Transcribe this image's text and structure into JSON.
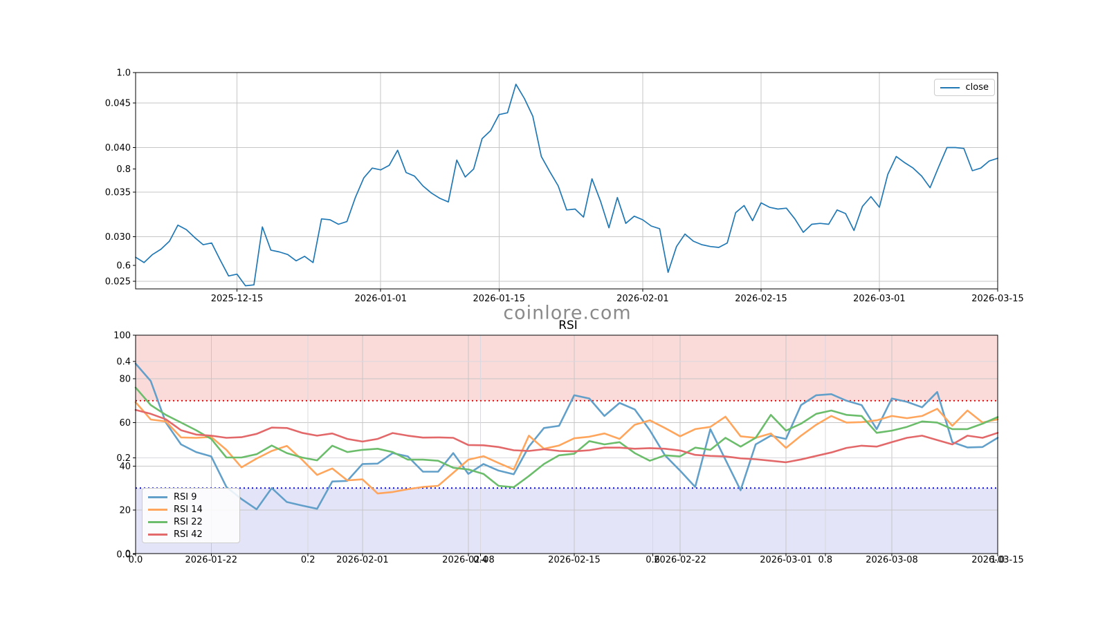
{
  "watermark": "coinlore.com",
  "colors": {
    "close": "#1f77b4",
    "rsi9": "#62a0ca",
    "rsi14": "#ffa55c",
    "rsi22": "#6bbd6b",
    "rsi42": "#e26869",
    "grid": "#c6c6c6",
    "grid_light": "#d8d8de",
    "overbought_band": "#fbdada",
    "oversold_band": "#e4e4f8",
    "overbought_line": "#e00000",
    "oversold_line": "#0000d0",
    "spine": "#000000",
    "watermark_color": "#8a8a8a"
  },
  "overlay_axis": {
    "y_ticks": [
      "0.0",
      "0.2",
      "0.4",
      "0.6",
      "0.8",
      "1.0"
    ],
    "x_ticks": [
      "0.0",
      "0.2",
      "0.4",
      "0.6",
      "0.8",
      "1.0"
    ]
  },
  "chart_data": [
    {
      "type": "line",
      "title": "",
      "xlabel": "",
      "ylabel": "",
      "x_start": "2025-12-03",
      "x_end": "2026-03-15",
      "frequency": "daily",
      "ylim": [
        0.02415,
        0.04841
      ],
      "grid": true,
      "legend_position": "upper right",
      "y_ticks": [
        {
          "label": "0.025",
          "v": 0.025
        },
        {
          "label": "0.030",
          "v": 0.03
        },
        {
          "label": "0.035",
          "v": 0.035
        },
        {
          "label": "0.040",
          "v": 0.04
        },
        {
          "label": "0.045",
          "v": 0.045
        }
      ],
      "x_ticks": [
        {
          "label": "2025-12-15",
          "f": 0.1176
        },
        {
          "label": "2026-01-01",
          "f": 0.2843
        },
        {
          "label": "2026-01-15",
          "f": 0.4216
        },
        {
          "label": "2026-02-01",
          "f": 0.5882
        },
        {
          "label": "2026-02-15",
          "f": 0.7255
        },
        {
          "label": "2026-03-01",
          "f": 0.8627
        },
        {
          "label": "2026-03-15",
          "f": 1.0
        }
      ],
      "series": [
        {
          "name": "close",
          "color_key": "close",
          "width": 1.7,
          "values": [
            0.0277,
            0.0271,
            0.028,
            0.0286,
            0.0295,
            0.0313,
            0.0308,
            0.0299,
            0.0291,
            0.0293,
            0.0274,
            0.0256,
            0.0258,
            0.0245,
            0.0246,
            0.0311,
            0.0285,
            0.0283,
            0.028,
            0.0273,
            0.0278,
            0.0271,
            0.032,
            0.0319,
            0.0314,
            0.0317,
            0.0344,
            0.0366,
            0.0377,
            0.0375,
            0.038,
            0.0397,
            0.0372,
            0.0368,
            0.0357,
            0.0349,
            0.0343,
            0.0339,
            0.0386,
            0.0367,
            0.0376,
            0.041,
            0.0419,
            0.0437,
            0.0439,
            0.0471,
            0.0455,
            0.0435,
            0.039,
            0.0373,
            0.0357,
            0.033,
            0.0331,
            0.0322,
            0.0365,
            0.034,
            0.031,
            0.0344,
            0.0315,
            0.0323,
            0.0319,
            0.0312,
            0.0309,
            0.026,
            0.0289,
            0.0303,
            0.0295,
            0.0291,
            0.0289,
            0.0288,
            0.0293,
            0.0327,
            0.0335,
            0.0318,
            0.0338,
            0.0333,
            0.0331,
            0.0332,
            0.032,
            0.0305,
            0.0314,
            0.0315,
            0.0314,
            0.033,
            0.0326,
            0.0307,
            0.0334,
            0.0345,
            0.0333,
            0.037,
            0.039,
            0.0383,
            0.0377,
            0.0368,
            0.0355,
            0.0378,
            0.04,
            0.04,
            0.0399,
            0.0374,
            0.0377,
            0.0385,
            0.0388
          ]
        }
      ]
    },
    {
      "type": "line",
      "title": "RSI",
      "xlabel": "",
      "ylabel": "",
      "x_start": "2026-01-17",
      "x_end": "2026-03-15",
      "frequency": "daily",
      "ylim": [
        0,
        100
      ],
      "grid": true,
      "legend_position": "lower left",
      "overbought_level": 70,
      "oversold_level": 30,
      "bands": [
        {
          "from": 70,
          "to": 100,
          "color_key": "overbought_band"
        },
        {
          "from": 0,
          "to": 30,
          "color_key": "oversold_band"
        }
      ],
      "y_ticks": [
        {
          "label": "0",
          "v": 0
        },
        {
          "label": "20",
          "v": 20
        },
        {
          "label": "40",
          "v": 40
        },
        {
          "label": "60",
          "v": 60
        },
        {
          "label": "80",
          "v": 80
        },
        {
          "label": "100",
          "v": 100
        }
      ],
      "x_ticks": [
        {
          "label": "2026-01-22",
          "f": 0.0877
        },
        {
          "label": "2026-02-01",
          "f": 0.2632
        },
        {
          "label": "2026-02-08",
          "f": 0.386
        },
        {
          "label": "2026-02-15",
          "f": 0.5088
        },
        {
          "label": "2026-02-22",
          "f": 0.6316
        },
        {
          "label": "2026-03-01",
          "f": 0.7544
        },
        {
          "label": "2026-03-08",
          "f": 0.8772
        },
        {
          "label": "2026-03-15",
          "f": 1.0
        }
      ],
      "series": [
        {
          "name": "RSI 9",
          "color_key": "rsi9",
          "width": 2.6,
          "values": [
            87,
            79,
            60,
            50,
            46.5,
            44.5,
            30.5,
            25,
            20.3,
            30,
            23.6,
            22,
            20.5,
            33,
            33.3,
            41,
            41.2,
            46,
            44.5,
            37.5,
            37.5,
            46,
            36.5,
            41,
            38,
            36.3,
            49,
            57.5,
            58.5,
            72.5,
            71,
            63,
            69,
            66,
            56.5,
            45,
            38,
            30.5,
            57,
            43,
            29,
            50,
            54,
            52.5,
            68,
            72.5,
            73,
            70,
            68,
            57,
            71,
            69.5,
            67,
            74,
            51,
            48.6,
            48.8,
            53
          ]
        },
        {
          "name": "RSI 14",
          "color_key": "rsi14",
          "width": 2.6,
          "values": [
            69.3,
            61.4,
            60.5,
            53.2,
            53,
            53.4,
            47.5,
            39.5,
            43.5,
            47,
            49.3,
            43,
            36,
            39,
            33.5,
            34,
            27.5,
            28.2,
            29.5,
            30.5,
            31,
            37,
            43,
            44.6,
            41.5,
            38.5,
            54,
            48,
            49.5,
            52.8,
            53.5,
            55,
            52.5,
            59,
            61,
            57.5,
            53.7,
            57,
            58,
            62.7,
            53.7,
            53,
            55,
            48.4,
            54,
            59,
            63,
            60,
            60.2,
            61,
            63,
            62,
            63,
            66.3,
            58.5,
            65.5,
            60,
            61.5
          ]
        },
        {
          "name": "RSI 22",
          "color_key": "rsi22",
          "width": 2.6,
          "values": [
            76,
            68,
            63.5,
            60,
            56.5,
            52.5,
            44,
            44,
            45.5,
            49.5,
            46,
            44,
            42.7,
            49.4,
            46.5,
            47.5,
            48,
            46.5,
            43,
            43,
            42.5,
            39.3,
            38.5,
            36.5,
            31,
            30.4,
            35.5,
            41,
            45,
            45.7,
            51.5,
            50,
            51,
            46,
            42.5,
            45,
            44.5,
            48.5,
            47.5,
            53,
            49,
            53,
            63.5,
            56.3,
            59.5,
            64,
            65.5,
            63.5,
            63,
            55.3,
            56.3,
            58,
            60.5,
            60,
            57,
            57,
            59.5,
            62.5
          ]
        },
        {
          "name": "RSI 42",
          "color_key": "rsi42",
          "width": 2.6,
          "values": [
            65.8,
            64,
            61.5,
            56.5,
            54.5,
            54,
            53,
            53.3,
            54.8,
            57.7,
            57.5,
            55.3,
            54,
            55,
            52.5,
            51.3,
            52.5,
            55.2,
            54,
            53.1,
            53.2,
            53,
            49.7,
            49.6,
            48.8,
            47.3,
            47,
            47.8,
            47,
            46.8,
            47.3,
            48.5,
            48.5,
            48,
            48.3,
            48,
            47.2,
            45.2,
            44.7,
            44.5,
            43.6,
            43.2,
            42.5,
            41.8,
            43.1,
            44.7,
            46.3,
            48.4,
            49.4,
            49,
            51,
            53,
            54,
            52,
            50,
            54,
            53,
            55.3
          ]
        }
      ]
    }
  ]
}
